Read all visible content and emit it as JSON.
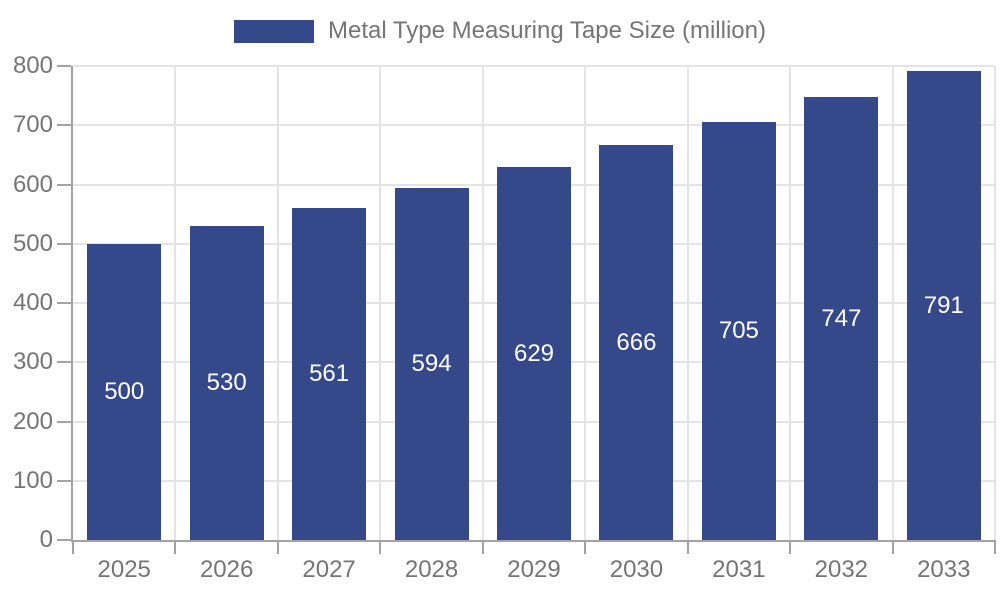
{
  "legend": {
    "label": "Metal Type Measuring Tape Size (million)"
  },
  "chart_data": {
    "type": "bar",
    "title": "Metal Type Measuring Tape Size (million)",
    "series_name": "Metal Type Measuring Tape Size (million)",
    "categories": [
      "2025",
      "2026",
      "2027",
      "2028",
      "2029",
      "2030",
      "2031",
      "2032",
      "2033"
    ],
    "values": [
      500,
      530,
      561,
      594,
      629,
      666,
      705,
      747,
      791
    ],
    "xlabel": "",
    "ylabel": "",
    "ylim": [
      0,
      800
    ],
    "yticks": [
      0,
      100,
      200,
      300,
      400,
      500,
      600,
      700,
      800
    ],
    "grid": true,
    "legend_position": "top-center",
    "value_label_position": "inside-center"
  },
  "colors": {
    "bar": "#354889",
    "axis_text": "#757575",
    "axis_line": "#a3a3a3",
    "gridline": "#e4e4e4",
    "value_label": "#ffffff",
    "background": "#ffffff"
  }
}
